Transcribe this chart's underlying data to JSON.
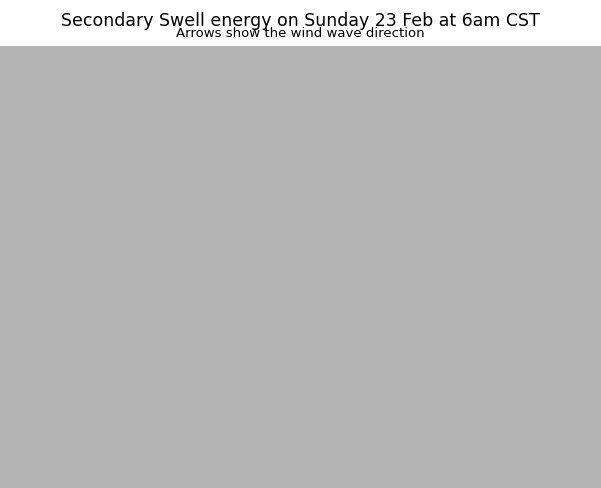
{
  "title": "Secondary Swell energy on Sunday 23 Feb at 6am CST",
  "subtitle": "Arrows show the wind wave direction",
  "title_fontsize": 12.5,
  "subtitle_fontsize": 9.5,
  "title_color": "#000000",
  "bg_color": "#ffffff",
  "fig_width": 6.01,
  "fig_height": 4.88,
  "dpi": 100,
  "map_extent": [
    -145,
    -50,
    38,
    78
  ],
  "land_color": "#c8c8c8",
  "water_color": "#000000",
  "border_color": "#000000",
  "border_lw": 0.5,
  "coastline_lw": 0.5
}
